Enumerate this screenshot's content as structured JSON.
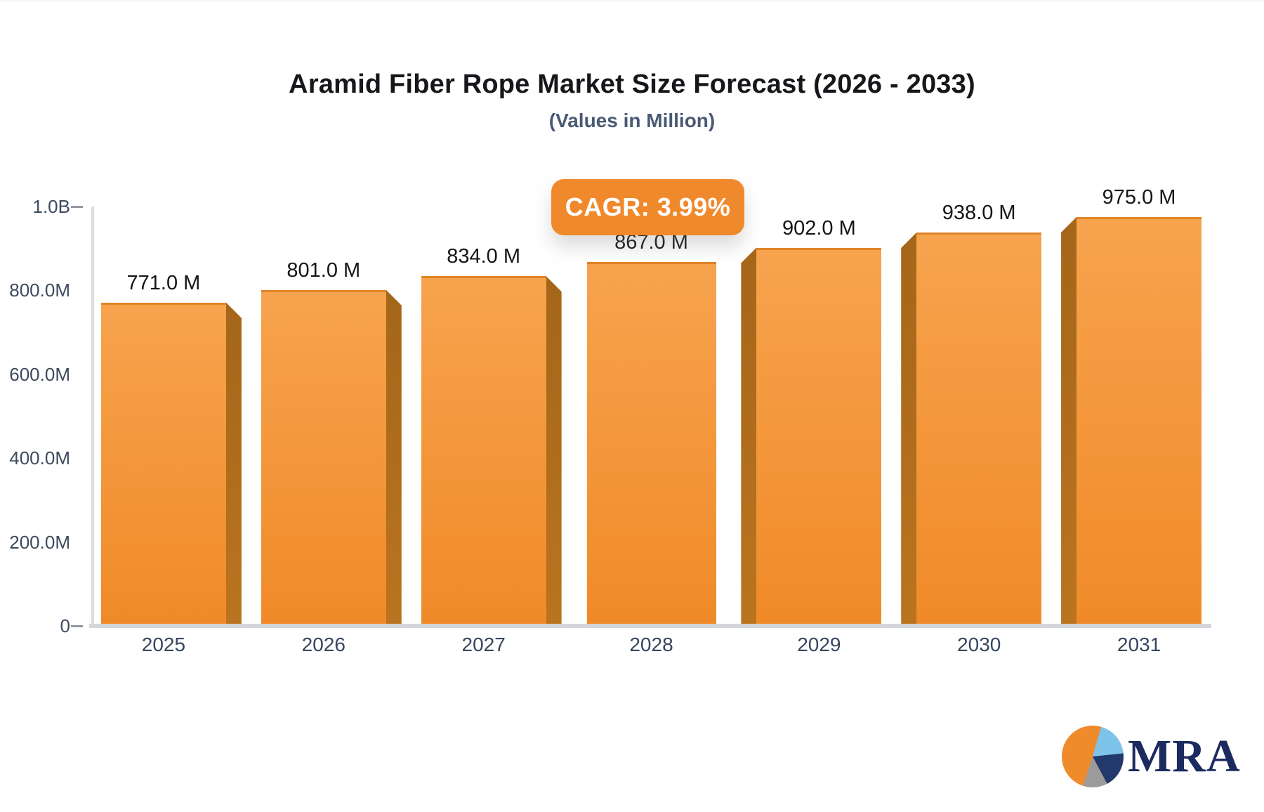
{
  "header": {
    "title": "Aramid Fiber Rope Market Size Forecast (2026 - 2033)",
    "subtitle": "(Values in Million)",
    "cagr_label": "CAGR: 3.99%"
  },
  "chart_data": {
    "type": "bar",
    "title": "Aramid Fiber Rope Market Size Forecast (2026 - 2033)",
    "subtitle": "(Values in Million)",
    "annotation": "CAGR: 3.99%",
    "categories": [
      "2025",
      "2026",
      "2027",
      "2028",
      "2029",
      "2030",
      "2031"
    ],
    "values_millions": [
      771,
      801,
      834,
      867,
      902,
      938,
      975
    ],
    "value_labels": [
      "771.0 M",
      "801.0 M",
      "834.0 M",
      "867.0 M",
      "902.0 M",
      "938.0 M",
      "975.0 M"
    ],
    "y_ticks": [
      {
        "label": "1.0B",
        "value_millions": 1000,
        "dash": true
      },
      {
        "label": "800.0M",
        "value_millions": 800,
        "dash": false
      },
      {
        "label": "600.0M",
        "value_millions": 600,
        "dash": false
      },
      {
        "label": "400.0M",
        "value_millions": 400,
        "dash": false
      },
      {
        "label": "200.0M",
        "value_millions": 200,
        "dash": false
      },
      {
        "label": "0",
        "value_millions": 0,
        "dash": true
      }
    ],
    "ylim_millions": [
      0,
      1000
    ],
    "grid": false,
    "legend_position": "none",
    "bar_color_top": "#f7a34e",
    "bar_color_bottom": "#f08a28",
    "bar_top_edge_color": "#e18426",
    "bar_side_color_top": "#a46619",
    "bar_side_color_bottom": "#ba741f"
  },
  "colors": {
    "accent_orange": "#f0892c",
    "title_text": "#17171b",
    "subtitle_text": "#4a5a74",
    "axis_label": "#3d4a5e",
    "category_label": "#36455f",
    "value_label": "#141519",
    "axis_line": "#dbdde1",
    "baseline": "#d3d5d9",
    "logo_navy": "#1c2b5f",
    "logo_light_blue": "#7ec3ea",
    "logo_gray": "#9b9b9b"
  },
  "logo": {
    "text": "MRA"
  }
}
